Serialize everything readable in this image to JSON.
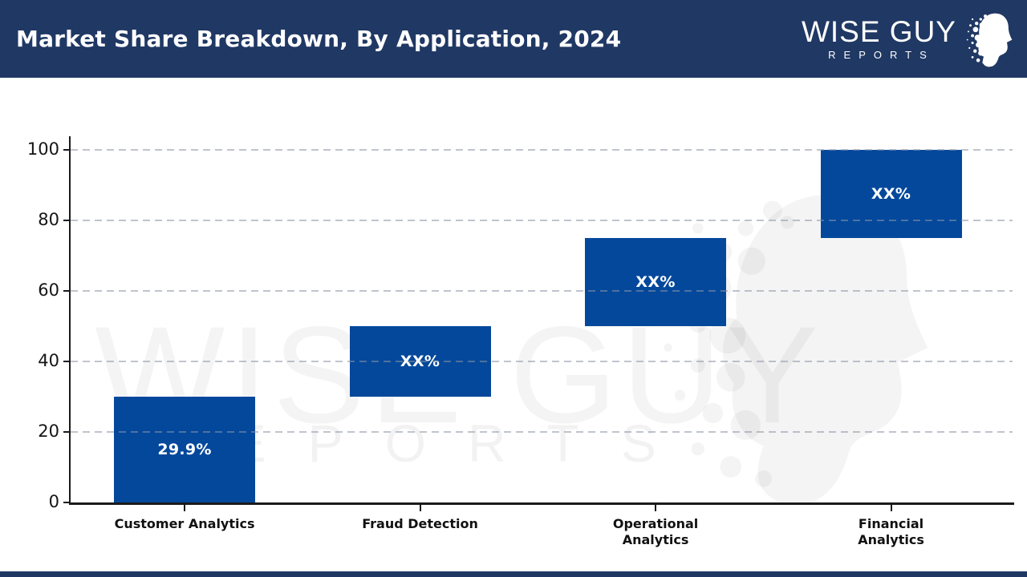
{
  "header": {
    "title": "Market Share Breakdown, By Application, 2024",
    "bg_color": "#203864",
    "logo": {
      "wordmark": "WISE GUY",
      "subtitle": "REPORTS"
    }
  },
  "watermark": {
    "wordmark": "WISE GUY",
    "subtitle": "REPORTS"
  },
  "chart_data": {
    "type": "bar",
    "variant": "waterfall",
    "title": "",
    "xlabel": "",
    "ylabel": "",
    "categories": [
      "Customer Analytics",
      "Fraud Detection",
      "Operational Analytics",
      "Financial Analytics"
    ],
    "category_lines": [
      [
        "Customer Analytics"
      ],
      [
        "Fraud Detection"
      ],
      [
        "Operational",
        "Analytics"
      ],
      [
        "Financial",
        "Analytics"
      ]
    ],
    "segments": [
      {
        "category": "Customer Analytics",
        "start": 0,
        "end": 29.9,
        "label": "29.9%"
      },
      {
        "category": "Fraud Detection",
        "start": 29.9,
        "end": 49.9,
        "label": "XX%"
      },
      {
        "category": "Operational Analytics",
        "start": 49.9,
        "end": 75.1,
        "label": "XX%"
      },
      {
        "category": "Financial Analytics",
        "start": 75.1,
        "end": 100,
        "label": "XX%"
      }
    ],
    "yticks": [
      0,
      20,
      40,
      60,
      80,
      100
    ],
    "ylim": [
      0,
      104
    ],
    "bar_color": "#04489c",
    "grid": "horizontal-dashed",
    "legend": null
  },
  "footer": {
    "bar_color": "#203864"
  }
}
